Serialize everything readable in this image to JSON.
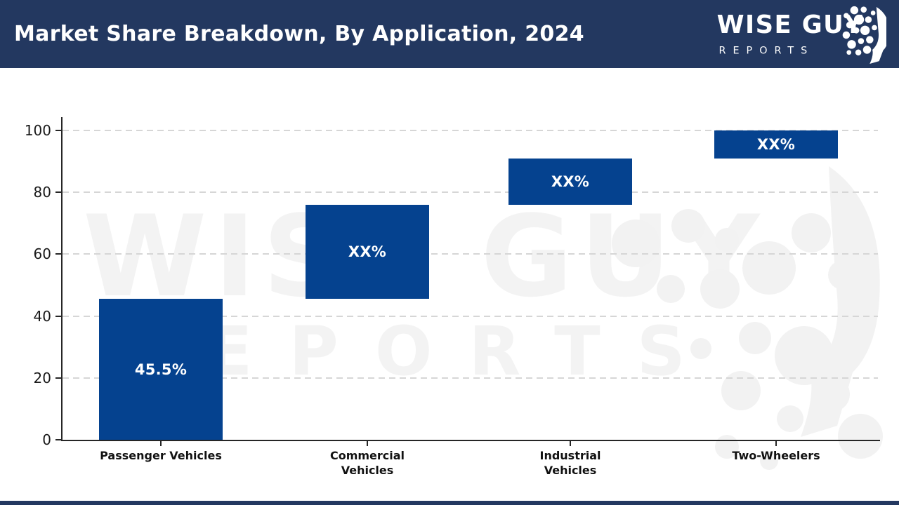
{
  "header": {
    "title": "Market Share Breakdown, By Application, 2024",
    "logo": {
      "line1": "WISE GUY",
      "line2": "REPORTS"
    }
  },
  "watermark": {
    "line1": "WISE GUY",
    "line2": "REPORTS"
  },
  "chart_data": {
    "type": "bar",
    "variant": "waterfall-breakdown",
    "title": "Market Share Breakdown, By Application, 2024",
    "categories": [
      "Passenger Vehicles",
      "Commercial Vehicles",
      "Industrial Vehicles",
      "Two-Wheelers"
    ],
    "categories_display": [
      "Passenger Vehicles",
      "Commercial\nVehicles",
      "Industrial\nVehicles",
      "Two-Wheelers"
    ],
    "segments": [
      {
        "category": "Passenger Vehicles",
        "label": "45.5%",
        "start": 0,
        "end": 45.5
      },
      {
        "category": "Commercial Vehicles",
        "label": "XX%",
        "start": 45.5,
        "end": 76
      },
      {
        "category": "Industrial Vehicles",
        "label": "XX%",
        "start": 76,
        "end": 91
      },
      {
        "category": "Two-Wheelers",
        "label": "XX%",
        "start": 91,
        "end": 100
      }
    ],
    "xlabel": "",
    "ylabel": "",
    "ylim": [
      0,
      100
    ],
    "yticks": [
      0,
      20,
      40,
      60,
      80,
      100
    ],
    "grid": "horizontal-dashed",
    "legend": null,
    "bar_color": "#05428f",
    "bar_label_color": "#ffffff"
  },
  "colors": {
    "header_navy": "#233860",
    "bar_blue": "#05428f",
    "watermark_gray": "#f2f2f2",
    "grid_gray": "#d6d6d6",
    "axis_dark": "#262626"
  }
}
